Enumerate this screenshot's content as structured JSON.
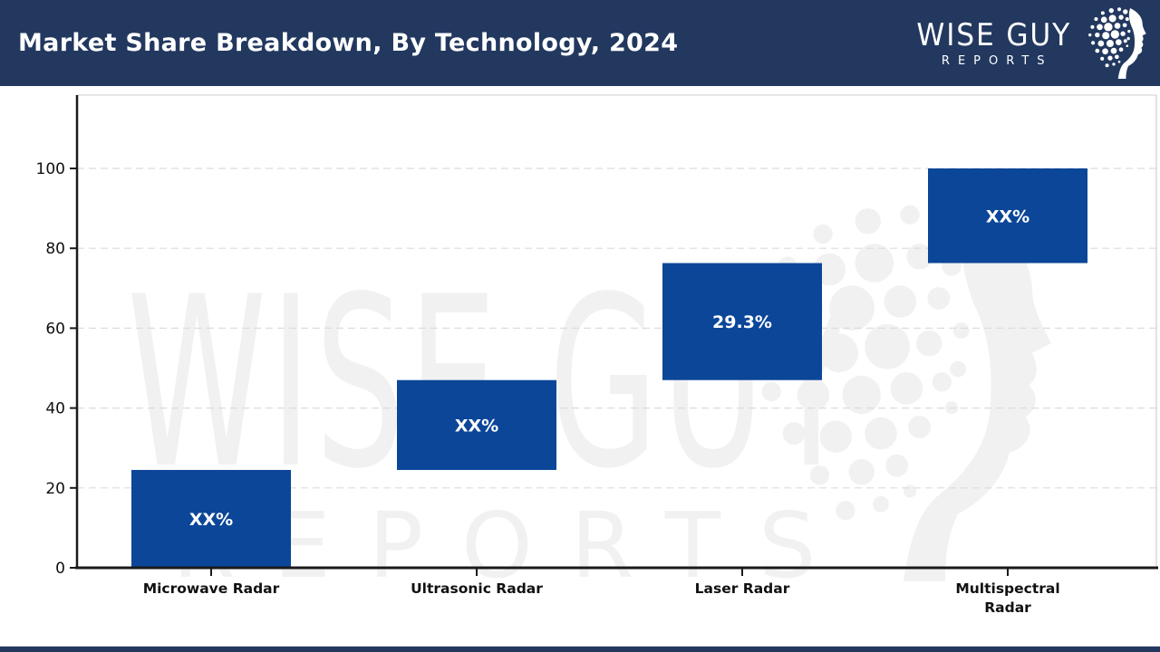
{
  "header": {
    "title": "Market Share Breakdown, By Technology, 2024",
    "bg_color": "#22385f",
    "logo": {
      "name": "WISE GUY",
      "sub": "REPORTS",
      "icon": "dotted-face-icon"
    }
  },
  "watermark": {
    "line1": "WISE GUY",
    "line2": "REPORTS",
    "icon": "dotted-face-icon",
    "color": "#f1f1f1"
  },
  "footer": {
    "bg_color": "#22385f"
  },
  "chart_data": {
    "type": "bar",
    "subtype": "waterfall-floating-segments",
    "title": "Market Share Breakdown, By Technology, 2024",
    "categories": [
      "Microwave Radar",
      "Ultrasonic Radar",
      "Laser Radar",
      "Multispectral Radar"
    ],
    "bars": [
      {
        "category": "Microwave Radar",
        "start": 0,
        "end": 24.5,
        "value": 24.5,
        "label": "XX%"
      },
      {
        "category": "Ultrasonic Radar",
        "start": 24.5,
        "end": 47.0,
        "value": 22.5,
        "label": "XX%"
      },
      {
        "category": "Laser Radar",
        "start": 47.0,
        "end": 76.3,
        "value": 29.3,
        "label": "29.3%"
      },
      {
        "category": "Multispectral Radar",
        "start": 76.3,
        "end": 100,
        "value": 23.7,
        "label": "XX%"
      }
    ],
    "bar_color": "#0b4699",
    "bar_label_color": "#ffffff",
    "xlabel": "",
    "ylabel": "",
    "ylim": [
      0,
      105
    ],
    "yticks": [
      0,
      20,
      40,
      60,
      80,
      100
    ],
    "grid": {
      "horizontal": true,
      "style": "dashed",
      "color": "#dcdcdc"
    },
    "axis_color": "#1a1a1a",
    "minor_spine_color": "#cfcfcf",
    "tick_label_color": "#111111",
    "legend": null
  }
}
